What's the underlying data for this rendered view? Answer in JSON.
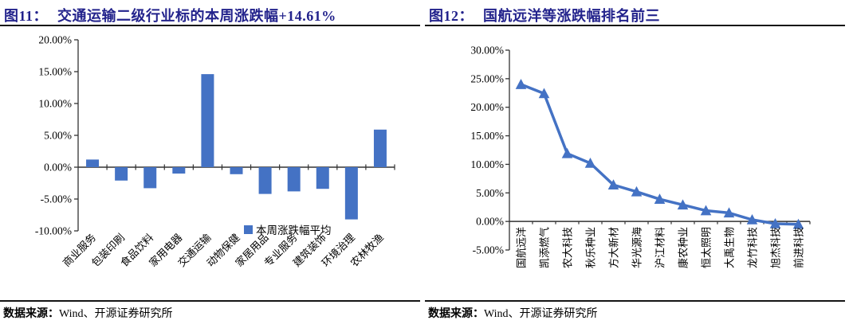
{
  "colors": {
    "accent_blue": "#4472C4",
    "title_navy": "#23238C",
    "axis": "#333333",
    "text": "#000000",
    "background": "#FFFFFF"
  },
  "figure_labels": [
    "图11：",
    "图12："
  ],
  "sources": [
    {
      "prefix": "数据来源：",
      "text": "Wind、开源证券研究所"
    },
    {
      "prefix": "数据来源：",
      "text": "Wind、开源证券研究所"
    }
  ],
  "chart_data": [
    {
      "type": "bar",
      "title": "交通运输二级行业标的本周涨跌幅+14.61%",
      "categories": [
        "商业服务",
        "包装印刷",
        "食品饮料",
        "家用电器",
        "交通运输",
        "动物保健",
        "家居用品",
        "专业服务",
        "建筑装饰",
        "环境治理",
        "农林牧渔"
      ],
      "values": [
        1.2,
        -2.1,
        -3.3,
        -1.0,
        14.61,
        -1.1,
        -4.2,
        -3.8,
        -3.4,
        -8.2,
        5.9
      ],
      "series_name": "本周涨跌幅平均",
      "legend": {
        "label": "本周涨跌幅平均",
        "position": "bottom-right"
      },
      "xlabel": "",
      "ylabel": "",
      "ylim": [
        -10,
        20
      ],
      "ytick_step": 5,
      "ytick_labels": [
        "20.00%",
        "15.00%",
        "10.00%",
        "5.00%",
        "0.00%",
        "-5.00%",
        "-10.00%"
      ],
      "grid": false,
      "bar_color": "#4472C4"
    },
    {
      "type": "line",
      "title": "国航远洋等涨跌幅排名前三",
      "marker": "triangle",
      "categories": [
        "国航远洋",
        "凯添燃气",
        "农大科技",
        "秋乐种业",
        "方大新材",
        "华光源海",
        "沪江材料",
        "康农种业",
        "恒太照明",
        "大禹生物",
        "龙竹科技",
        "旭杰科技",
        "前进科技"
      ],
      "values": [
        24.0,
        22.4,
        11.9,
        10.2,
        6.4,
        5.2,
        3.9,
        2.9,
        1.9,
        1.5,
        0.3,
        -0.4,
        -0.5
      ],
      "xlabel": "",
      "ylabel": "",
      "ylim": [
        -5,
        30
      ],
      "ytick_step": 5,
      "ytick_labels": [
        "30.00%",
        "25.00%",
        "20.00%",
        "15.00%",
        "10.00%",
        "5.00%",
        "0.00%",
        "-5.00%"
      ],
      "grid": false,
      "legend": null,
      "line_color": "#4472C4"
    }
  ]
}
